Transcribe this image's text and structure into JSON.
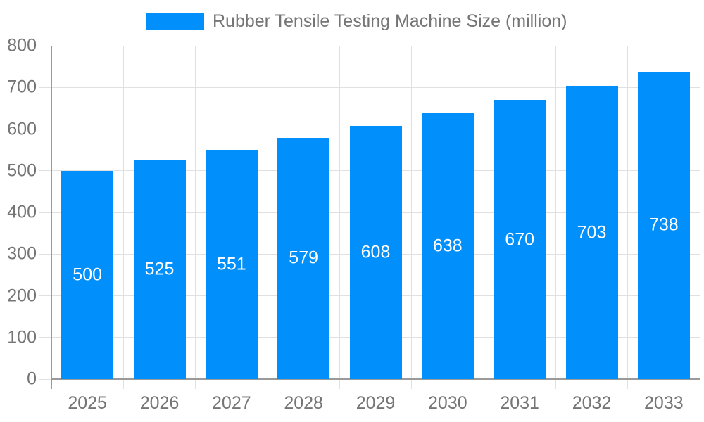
{
  "legend": {
    "label": "Rubber Tensile Testing Machine Size (million)",
    "swatch_color": "#008FFB"
  },
  "chart_data": {
    "type": "bar",
    "title": "Rubber Tensile Testing Machine Size (million)",
    "categories": [
      "2025",
      "2026",
      "2027",
      "2028",
      "2029",
      "2030",
      "2031",
      "2032",
      "2033"
    ],
    "series": [
      {
        "name": "Rubber Tensile Testing Machine Size (million)",
        "values": [
          500,
          525,
          551,
          579,
          608,
          638,
          670,
          703,
          738
        ]
      }
    ],
    "xlabel": "",
    "ylabel": "",
    "ylim": [
      0,
      800
    ],
    "yticks": [
      0,
      100,
      200,
      300,
      400,
      500,
      600,
      700,
      800
    ],
    "grid": true,
    "legend_position": "top",
    "value_labels_position": "center",
    "colors": {
      "bar": "#008FFB",
      "value_label_text": "#ffffff",
      "axis_label_text": "#757575",
      "gridline": "#e0e0e0",
      "axis_line": "#9a9a9a",
      "background": "#ffffff"
    }
  }
}
